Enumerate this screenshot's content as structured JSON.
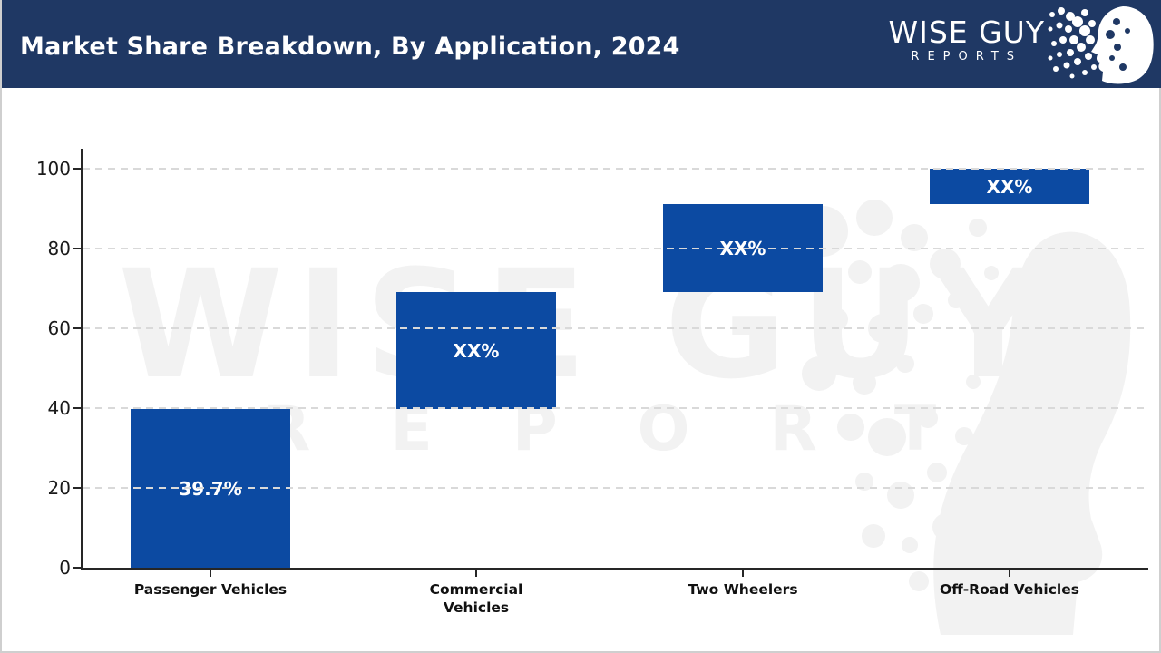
{
  "header": {
    "title": "Market Share Breakdown, By Application, 2024",
    "logo": {
      "name": "WISE GUY",
      "sub": "REPORTS"
    }
  },
  "watermark": {
    "line1": "WISE GUY",
    "line2": "REPORTS"
  },
  "chart_data": {
    "type": "bar",
    "subtype": "floating-waterfall",
    "title": "Market Share Breakdown, By Application, 2024",
    "categories": [
      "Passenger Vehicles",
      "Commercial\nVehicles",
      "Two Wheelers",
      "Off-Road Vehicles"
    ],
    "series": [
      {
        "name": "Market share (%)",
        "segments": [
          {
            "category": "Passenger Vehicles",
            "start": 0,
            "end": 39.7,
            "value": 39.7,
            "label": "39.7%"
          },
          {
            "category": "Commercial Vehicles",
            "start": 39.7,
            "end": 69.0,
            "value": 29.3,
            "label": "XX%"
          },
          {
            "category": "Two Wheelers",
            "start": 69.0,
            "end": 91.1,
            "value": 22.1,
            "label": "XX%"
          },
          {
            "category": "Off-Road Vehicles",
            "start": 91.1,
            "end": 100.0,
            "value": 8.9,
            "label": "XX%"
          }
        ]
      }
    ],
    "ylim": [
      0,
      105
    ],
    "yticks": [
      0,
      20,
      40,
      60,
      80,
      100
    ],
    "xlabel": "",
    "ylabel": "",
    "grid": "horizontal-dashed",
    "legend": "none",
    "bar_color": "#0C4AA2",
    "value_label_color": "#ffffff",
    "header_color": "#1F3864"
  }
}
